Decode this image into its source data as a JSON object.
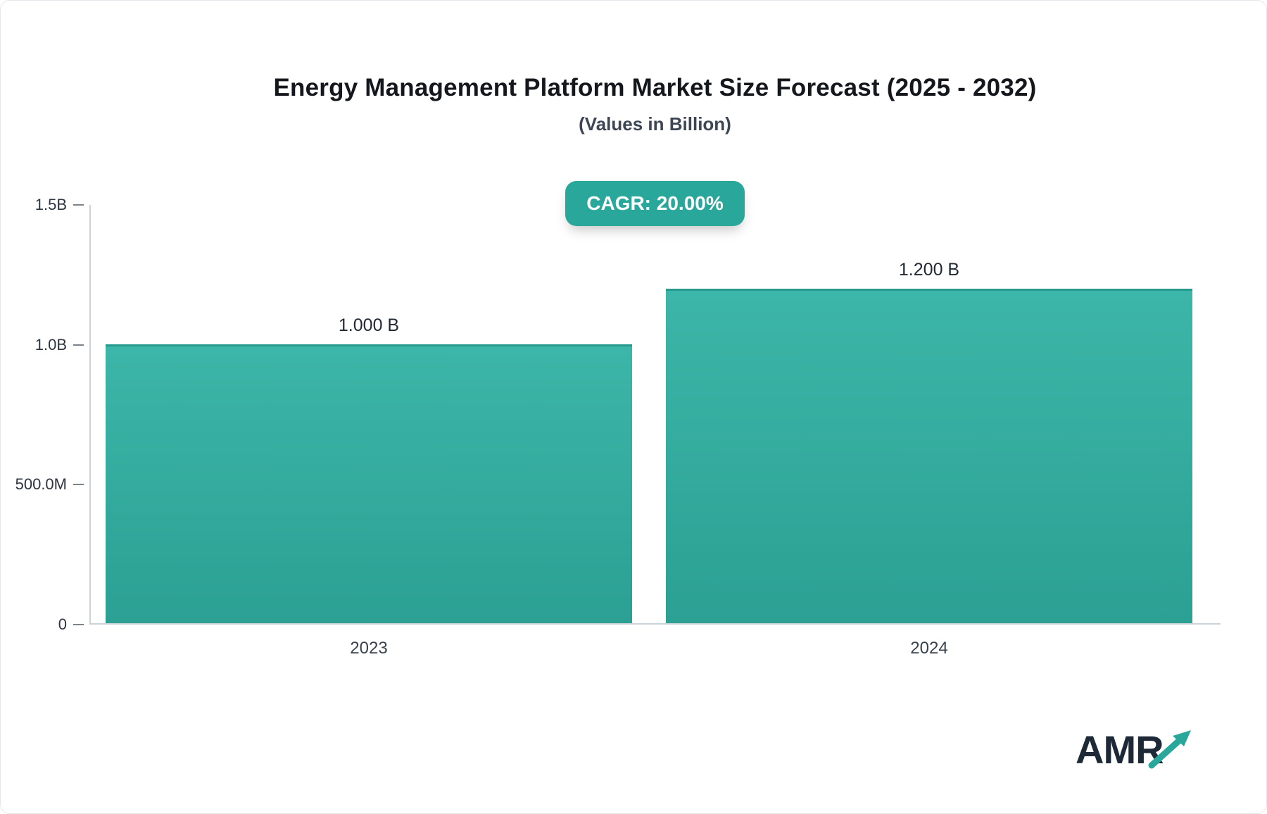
{
  "chart_data": {
    "type": "bar",
    "title": "Energy Management Platform Market Size Forecast (2025 - 2032)",
    "subtitle": "(Values in Billion)",
    "cagr_label": "CAGR: 20.00%",
    "categories": [
      "2023",
      "2024"
    ],
    "values": [
      1000000000,
      1200000000
    ],
    "value_labels": [
      "1.000 B",
      "1.200 B"
    ],
    "xlabel": "",
    "ylabel": "",
    "ylim": [
      0,
      1500000000
    ],
    "yticks": [
      {
        "label": "1.5B",
        "value": 1500000000
      },
      {
        "label": "1.0B",
        "value": 1000000000
      },
      {
        "label": "500.0M",
        "value": 500000000
      },
      {
        "label": "0",
        "value": 0
      }
    ],
    "grid": false,
    "legend": false,
    "bar_color_top": "#3cb6a8",
    "bar_color_bottom": "#2ba093",
    "accent_color": "#2aa79b"
  },
  "logo": {
    "text": "AMR"
  }
}
